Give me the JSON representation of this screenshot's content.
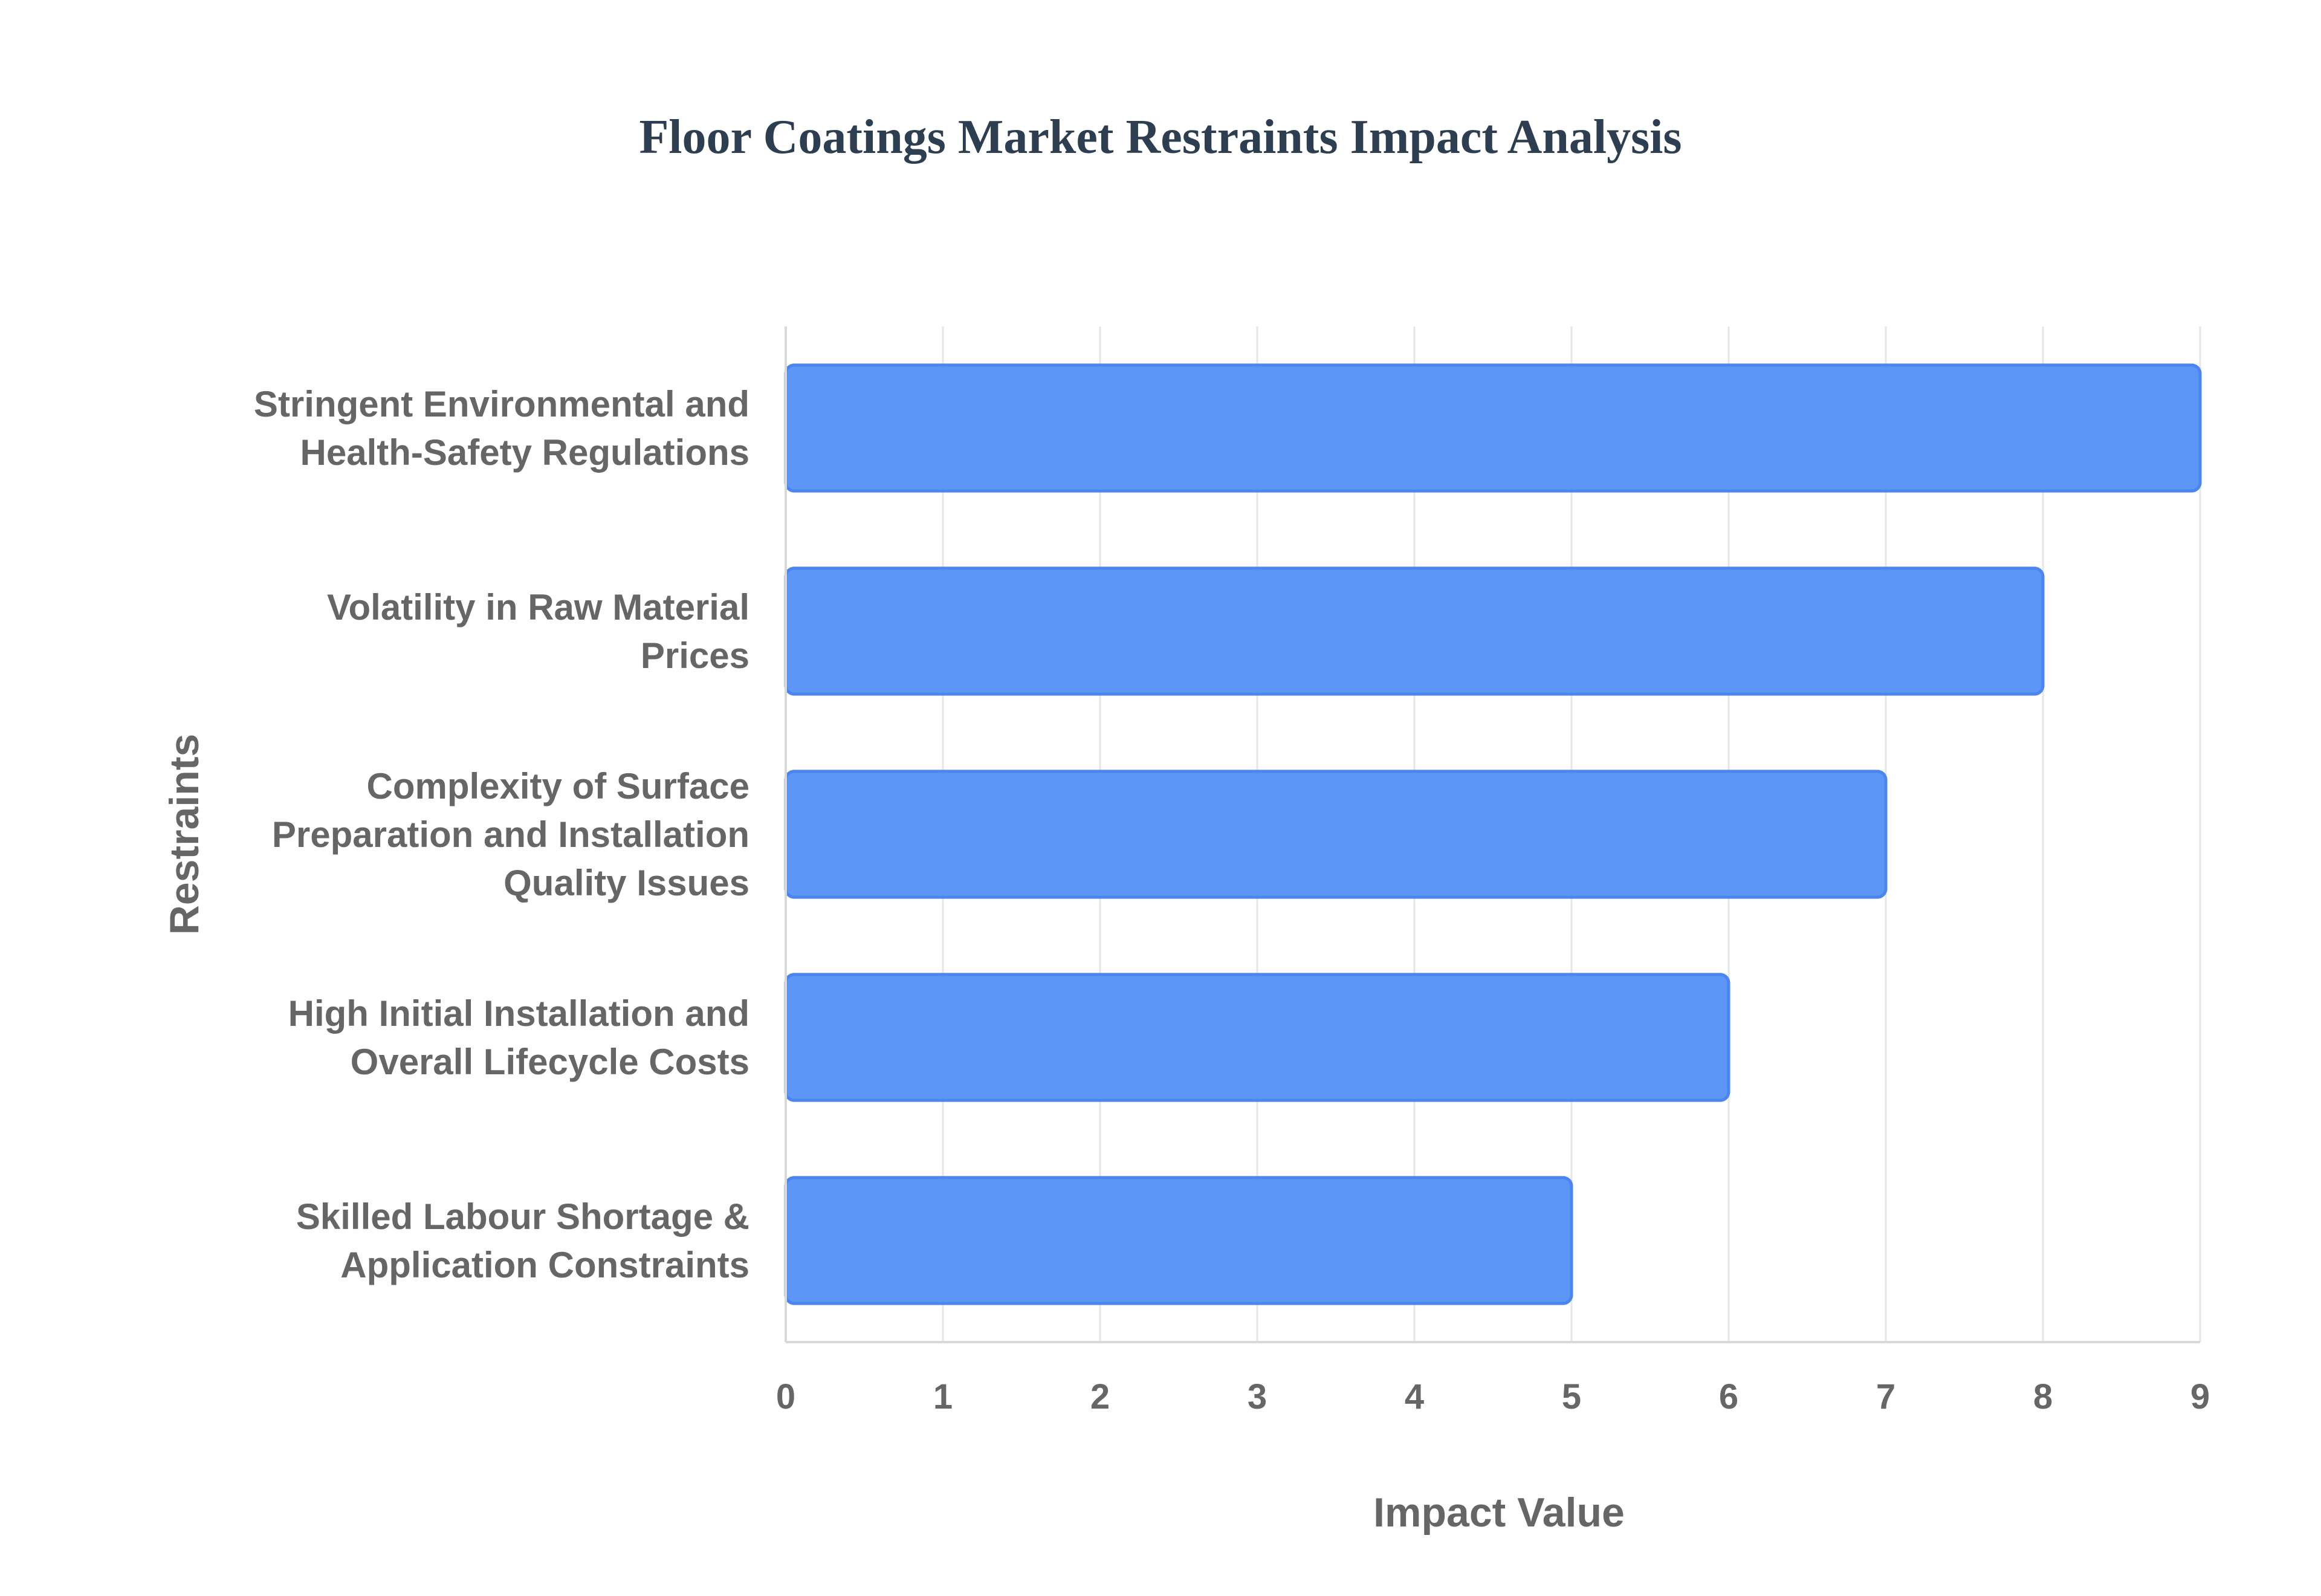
{
  "chart_data": {
    "type": "bar",
    "orientation": "horizontal",
    "title": "Floor Coatings Market Restraints Impact Analysis",
    "xlabel": "Impact Value",
    "ylabel": "Restraints",
    "categories": [
      [
        "Stringent Environmental and",
        "Health-Safety Regulations"
      ],
      [
        "Volatility in Raw Material",
        "Prices"
      ],
      [
        "Complexity of Surface",
        "Preparation and Installation",
        "Quality Issues"
      ],
      [
        "High Initial Installation and",
        "Overall Lifecycle Costs"
      ],
      [
        "Skilled Labour Shortage &",
        "Application Constraints"
      ]
    ],
    "values": [
      9,
      8,
      7,
      6,
      5
    ],
    "xlim": [
      0,
      9
    ],
    "xticks": [
      "0",
      "1",
      "2",
      "3",
      "4",
      "5",
      "6",
      "7",
      "8",
      "9"
    ],
    "grid": true,
    "legend": "none",
    "colors": {
      "bar_fill": "#5b95f5",
      "bar_stroke": "#4a86ee",
      "title": "#2c3e50",
      "text": "#666666",
      "grid": "#e6e6e6"
    }
  }
}
